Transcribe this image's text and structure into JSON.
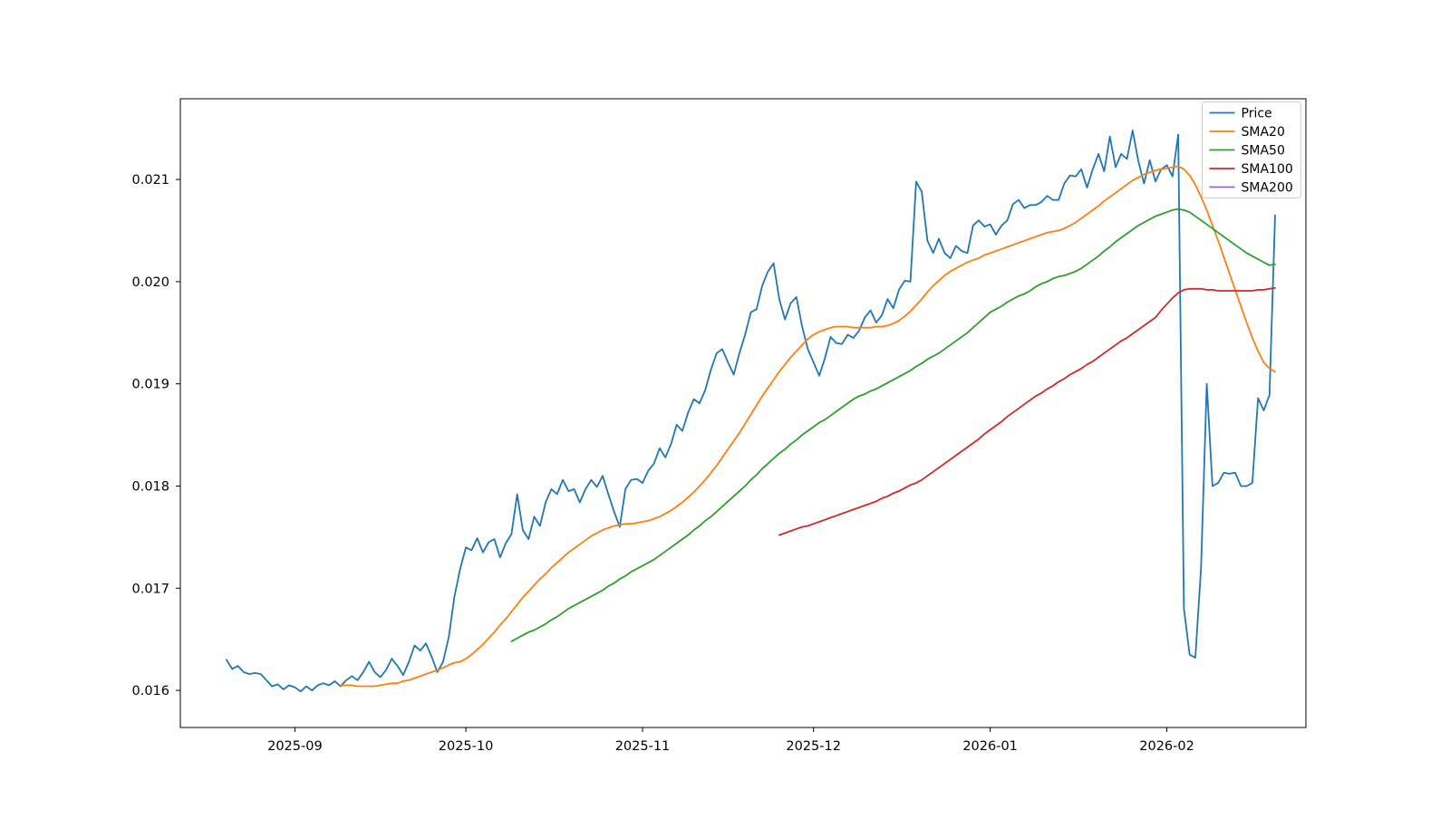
{
  "figure": {
    "background": "#ffffff"
  },
  "chart_data": {
    "type": "line",
    "title": "",
    "xlabel": "",
    "ylabel": "",
    "grid": false,
    "x_axis": {
      "day0_date": "2025-08-20",
      "tick_labels": [
        "2025-09",
        "2025-10",
        "2025-11",
        "2025-12",
        "2026-01",
        "2026-02"
      ],
      "tick_days": [
        12,
        42,
        73,
        103,
        134,
        165
      ],
      "xlim_days": [
        -8.1,
        189.4
      ]
    },
    "y_axis": {
      "tick_labels": [
        "0.016",
        "0.017",
        "0.018",
        "0.019",
        "0.020",
        "0.021"
      ],
      "tick_values": [
        0.016,
        0.017,
        0.018,
        0.019,
        0.02,
        0.021
      ],
      "ylim": [
        0.015637,
        0.02179
      ]
    },
    "legend": {
      "position": "upper right",
      "entries": [
        "Price",
        "SMA20",
        "SMA50",
        "SMA100",
        "SMA200"
      ]
    },
    "series": [
      {
        "name": "Price",
        "color": "#1f77b4",
        "start_day": 0,
        "values": [
          0.0163,
          0.01621,
          0.01624,
          0.01618,
          0.01616,
          0.01617,
          0.01616,
          0.0161,
          0.01604,
          0.01606,
          0.01601,
          0.01605,
          0.01603,
          0.01599,
          0.01604,
          0.016,
          0.01605,
          0.01607,
          0.01605,
          0.01609,
          0.01604,
          0.0161,
          0.01614,
          0.0161,
          0.01618,
          0.01628,
          0.01618,
          0.01613,
          0.0162,
          0.01631,
          0.01624,
          0.01615,
          0.01628,
          0.01644,
          0.01639,
          0.01646,
          0.01633,
          0.01618,
          0.01628,
          0.01652,
          0.01692,
          0.01719,
          0.0174,
          0.01737,
          0.01749,
          0.01735,
          0.01745,
          0.01748,
          0.0173,
          0.01744,
          0.01753,
          0.01792,
          0.01757,
          0.01748,
          0.0177,
          0.01761,
          0.01784,
          0.01797,
          0.01792,
          0.01806,
          0.01795,
          0.01797,
          0.01784,
          0.01797,
          0.01806,
          0.01799,
          0.0181,
          0.01792,
          0.01775,
          0.0176,
          0.01797,
          0.01806,
          0.01807,
          0.01803,
          0.01815,
          0.01822,
          0.01837,
          0.01828,
          0.01841,
          0.0186,
          0.01854,
          0.01872,
          0.01885,
          0.01881,
          0.01894,
          0.01914,
          0.0193,
          0.01934,
          0.01921,
          0.01909,
          0.0193,
          0.01948,
          0.0197,
          0.01973,
          0.01996,
          0.0201,
          0.02018,
          0.01983,
          0.01963,
          0.01979,
          0.01985,
          0.01956,
          0.01934,
          0.01921,
          0.01908,
          0.01925,
          0.01946,
          0.0194,
          0.01939,
          0.01948,
          0.01945,
          0.01952,
          0.01965,
          0.01972,
          0.0196,
          0.01967,
          0.01983,
          0.01974,
          0.01992,
          0.02001,
          0.02,
          0.02098,
          0.02088,
          0.0204,
          0.02028,
          0.02042,
          0.02028,
          0.02023,
          0.02035,
          0.0203,
          0.02028,
          0.02055,
          0.0206,
          0.02054,
          0.02056,
          0.02046,
          0.02055,
          0.0206,
          0.02076,
          0.0208,
          0.02072,
          0.02075,
          0.02075,
          0.02078,
          0.02084,
          0.0208,
          0.0208,
          0.02096,
          0.02104,
          0.02103,
          0.0211,
          0.02092,
          0.0211,
          0.02125,
          0.02108,
          0.02142,
          0.02112,
          0.02125,
          0.0212,
          0.02148,
          0.02118,
          0.02096,
          0.02119,
          0.02098,
          0.0211,
          0.02114,
          0.02103,
          0.02144,
          0.0168,
          0.01635,
          0.01632,
          0.0172,
          0.019,
          0.018,
          0.01803,
          0.01813,
          0.01812,
          0.01813,
          0.018,
          0.018,
          0.01803,
          0.01886,
          0.01874,
          0.01889,
          0.02065
        ]
      },
      {
        "name": "SMA20",
        "color": "#ff7f0e",
        "start_day": 20,
        "values": [
          0.01605,
          0.01605,
          0.01605,
          0.01604,
          0.01604,
          0.01604,
          0.01604,
          0.01605,
          0.01606,
          0.01607,
          0.01607,
          0.01609,
          0.0161,
          0.01612,
          0.01614,
          0.01616,
          0.01618,
          0.0162,
          0.01622,
          0.01625,
          0.01627,
          0.01628,
          0.01631,
          0.01635,
          0.0164,
          0.01645,
          0.01651,
          0.01657,
          0.01664,
          0.0167,
          0.01677,
          0.01684,
          0.01691,
          0.01697,
          0.01703,
          0.01709,
          0.01714,
          0.0172,
          0.01725,
          0.0173,
          0.01735,
          0.01739,
          0.01743,
          0.01747,
          0.01751,
          0.01754,
          0.01757,
          0.01759,
          0.01761,
          0.01762,
          0.01763,
          0.01763,
          0.01764,
          0.01765,
          0.01766,
          0.01768,
          0.0177,
          0.01773,
          0.01776,
          0.0178,
          0.01784,
          0.01789,
          0.01794,
          0.018,
          0.01806,
          0.01813,
          0.0182,
          0.01828,
          0.01836,
          0.01844,
          0.01852,
          0.01861,
          0.0187,
          0.01879,
          0.01888,
          0.01896,
          0.01904,
          0.01912,
          0.01919,
          0.01926,
          0.01932,
          0.01938,
          0.01944,
          0.01948,
          0.01951,
          0.01953,
          0.01955,
          0.01956,
          0.01956,
          0.01956,
          0.01955,
          0.01955,
          0.01955,
          0.01955,
          0.01956,
          0.01956,
          0.01957,
          0.01959,
          0.01962,
          0.01966,
          0.01971,
          0.01977,
          0.01983,
          0.0199,
          0.01996,
          0.02001,
          0.02006,
          0.0201,
          0.02013,
          0.02016,
          0.02019,
          0.02021,
          0.02023,
          0.02026,
          0.02028,
          0.0203,
          0.02032,
          0.02034,
          0.02036,
          0.02038,
          0.0204,
          0.02042,
          0.02044,
          0.02046,
          0.02048,
          0.02049,
          0.0205,
          0.02052,
          0.02055,
          0.02058,
          0.02062,
          0.02066,
          0.0207,
          0.02074,
          0.02079,
          0.02083,
          0.02087,
          0.02091,
          0.02095,
          0.02099,
          0.02102,
          0.02105,
          0.02107,
          0.02109,
          0.0211,
          0.02111,
          0.02112,
          0.02113,
          0.0211,
          0.02104,
          0.02095,
          0.02083,
          0.0207,
          0.02055,
          0.0204,
          0.02024,
          0.02008,
          0.01992,
          0.01976,
          0.0196,
          0.01945,
          0.01932,
          0.01921,
          0.01915,
          0.01912
        ]
      },
      {
        "name": "SMA50",
        "color": "#2ca02c",
        "start_day": 50,
        "values": [
          0.01648,
          0.01651,
          0.01654,
          0.01657,
          0.01659,
          0.01662,
          0.01665,
          0.01669,
          0.01672,
          0.01676,
          0.0168,
          0.01683,
          0.01686,
          0.01689,
          0.01692,
          0.01695,
          0.01698,
          0.01702,
          0.01705,
          0.01709,
          0.01712,
          0.01716,
          0.01719,
          0.01722,
          0.01725,
          0.01728,
          0.01732,
          0.01736,
          0.0174,
          0.01744,
          0.01748,
          0.01752,
          0.01757,
          0.01761,
          0.01766,
          0.0177,
          0.01775,
          0.0178,
          0.01785,
          0.0179,
          0.01795,
          0.018,
          0.01806,
          0.01811,
          0.01817,
          0.01822,
          0.01827,
          0.01832,
          0.01836,
          0.01841,
          0.01845,
          0.0185,
          0.01854,
          0.01858,
          0.01862,
          0.01865,
          0.01869,
          0.01873,
          0.01877,
          0.01881,
          0.01885,
          0.01888,
          0.0189,
          0.01893,
          0.01895,
          0.01898,
          0.01901,
          0.01904,
          0.01907,
          0.0191,
          0.01913,
          0.01917,
          0.0192,
          0.01924,
          0.01927,
          0.0193,
          0.01934,
          0.01938,
          0.01942,
          0.01946,
          0.0195,
          0.01955,
          0.0196,
          0.01965,
          0.0197,
          0.01973,
          0.01976,
          0.0198,
          0.01983,
          0.01986,
          0.01988,
          0.01991,
          0.01995,
          0.01998,
          0.02,
          0.02003,
          0.02005,
          0.02006,
          0.02008,
          0.0201,
          0.02013,
          0.02017,
          0.02021,
          0.02025,
          0.0203,
          0.02034,
          0.02039,
          0.02043,
          0.02047,
          0.02051,
          0.02055,
          0.02058,
          0.02061,
          0.02064,
          0.02066,
          0.02068,
          0.0207,
          0.02071,
          0.0207,
          0.02068,
          0.02064,
          0.0206,
          0.02056,
          0.02052,
          0.02048,
          0.02044,
          0.0204,
          0.02036,
          0.02032,
          0.02028,
          0.02025,
          0.02022,
          0.02019,
          0.02016,
          0.02017
        ]
      },
      {
        "name": "SMA100",
        "color": "#d62728",
        "start_day": 97,
        "values": [
          0.01752,
          0.01754,
          0.01756,
          0.01758,
          0.0176,
          0.01761,
          0.01763,
          0.01765,
          0.01767,
          0.01769,
          0.01771,
          0.01773,
          0.01775,
          0.01777,
          0.01779,
          0.01781,
          0.01783,
          0.01785,
          0.01788,
          0.0179,
          0.01793,
          0.01795,
          0.01798,
          0.01801,
          0.01803,
          0.01806,
          0.0181,
          0.01814,
          0.01818,
          0.01822,
          0.01826,
          0.0183,
          0.01834,
          0.01838,
          0.01842,
          0.01846,
          0.01851,
          0.01855,
          0.01859,
          0.01863,
          0.01868,
          0.01872,
          0.01876,
          0.0188,
          0.01884,
          0.01888,
          0.01891,
          0.01895,
          0.01898,
          0.01902,
          0.01905,
          0.01909,
          0.01912,
          0.01915,
          0.01919,
          0.01922,
          0.01926,
          0.0193,
          0.01934,
          0.01938,
          0.01942,
          0.01945,
          0.01949,
          0.01953,
          0.01957,
          0.01961,
          0.01965,
          0.01972,
          0.01978,
          0.01984,
          0.01989,
          0.01992,
          0.01993,
          0.01993,
          0.01993,
          0.01992,
          0.01992,
          0.01991,
          0.01991,
          0.01991,
          0.01991,
          0.01991,
          0.01991,
          0.01991,
          0.01992,
          0.01992,
          0.01993,
          0.01994
        ]
      },
      {
        "name": "SMA200",
        "color": "#9467bd",
        "start_day": 0,
        "legend_only": true,
        "values": []
      }
    ]
  }
}
